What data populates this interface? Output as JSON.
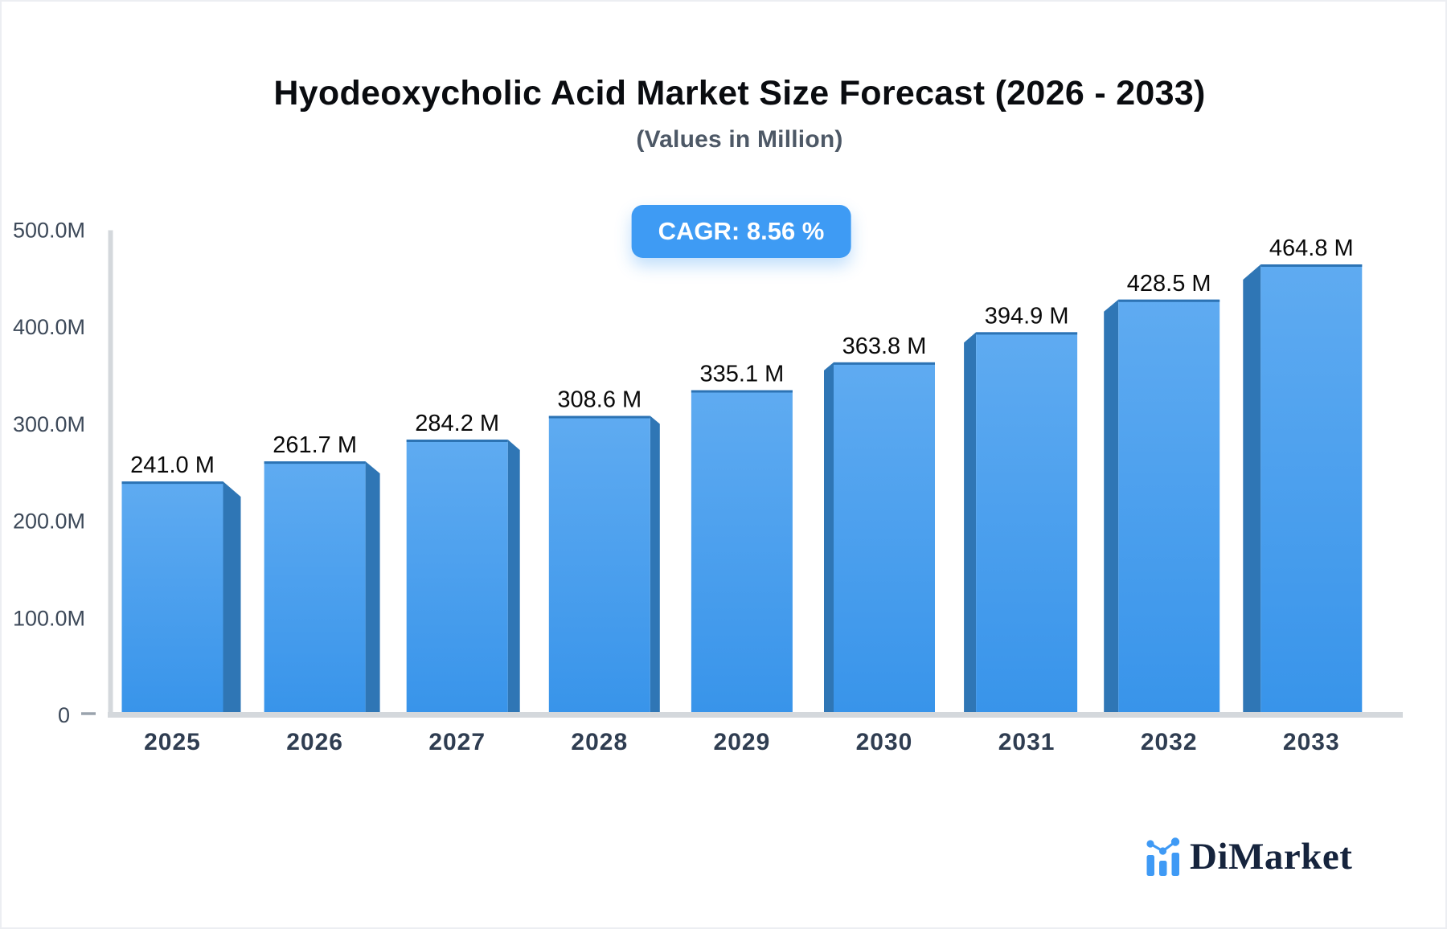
{
  "chart_data": {
    "type": "bar",
    "title": "Hyodeoxycholic Acid Market Size Forecast (2026 - 2033)",
    "subtitle": "(Values in Million)",
    "cagr_label": "CAGR: 8.56 %",
    "categories": [
      "2025",
      "2026",
      "2027",
      "2028",
      "2029",
      "2030",
      "2031",
      "2032",
      "2033"
    ],
    "values": [
      241.0,
      261.7,
      284.2,
      308.6,
      335.1,
      363.8,
      394.9,
      428.5,
      464.8
    ],
    "value_labels": [
      "241.0 M",
      "261.7 M",
      "284.2 M",
      "308.6 M",
      "335.1 M",
      "363.8 M",
      "394.9 M",
      "428.5 M",
      "464.8 M"
    ],
    "unit": "Million",
    "ylim": [
      0,
      500
    ],
    "y_ticks": [
      {
        "value": 500,
        "label": "500.0M"
      },
      {
        "value": 400,
        "label": "400.0M"
      },
      {
        "value": 300,
        "label": "300.0M"
      },
      {
        "value": 200,
        "label": "200.0M"
      },
      {
        "value": 100,
        "label": "100.0M"
      },
      {
        "value": 0,
        "label": "0"
      }
    ],
    "grid": false,
    "legend": false,
    "bar_style": "3d-perspective-center-vanishing"
  },
  "branding": {
    "logo_text": "DiMarket"
  },
  "colors": {
    "bar_face_top": "#5fabf1",
    "bar_face_bottom": "#3894ea",
    "bar_top_stroke": "#2c73b4",
    "bar_side_panel": "#2f76b5",
    "badge_bg": "#3e9bf4",
    "badge_text": "#ffffff",
    "axis_line": "#d4d8dc",
    "zero_tick": "#9aa3ad",
    "y_tick_text": "#3d4959",
    "x_tick_text": "#2f3d51",
    "value_text": "#0a0a0a",
    "title_text": "#0a0c10",
    "subtitle_text": "#4d5866",
    "logo_navy": "#16243d",
    "logo_blue": "#3f9af5"
  }
}
